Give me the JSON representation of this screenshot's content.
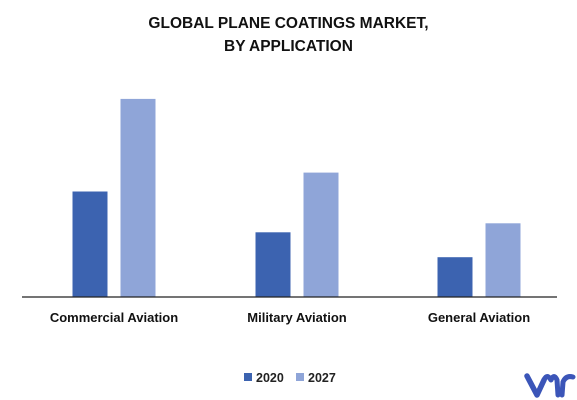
{
  "chart_data": {
    "type": "bar",
    "title_lines": [
      "GLOBAL PLANE COATINGS MARKET,",
      "BY APPLICATION"
    ],
    "categories": [
      "Commercial Aviation",
      "Military Aviation",
      "General Aviation"
    ],
    "series": [
      {
        "name": "2020",
        "values": [
          53,
          32.5,
          20
        ]
      },
      {
        "name": "2027",
        "values": [
          99.5,
          62.5,
          37
        ]
      }
    ],
    "ylim": [
      0,
      110
    ],
    "xlabel": "",
    "ylabel": "",
    "grid": false,
    "legend_position": "bottom",
    "colors": {
      "2020": "#3c63b0",
      "2027": "#8fa5d8"
    }
  },
  "logo": {
    "icon": "vmr-logo-icon",
    "text": "vmr",
    "color": "#3b55b8"
  }
}
